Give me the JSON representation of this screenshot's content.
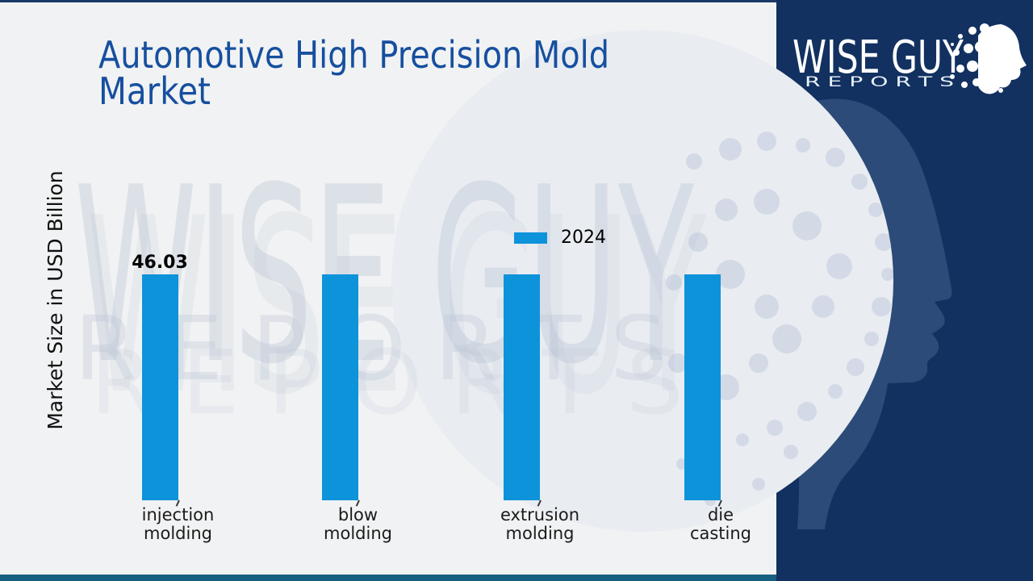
{
  "header": {
    "title_lines": [
      "Automotive High Precision Mold",
      "Market"
    ]
  },
  "logo": {
    "name_text": "WISE GUY",
    "sub_text": "R E P O R T S"
  },
  "watermark": {
    "name_text": "WISE GUY",
    "sub_text": "R E P O R T S"
  },
  "chart_data": {
    "type": "bar",
    "title": "Automotive High Precision Mold Market",
    "xlabel": "",
    "ylabel": "Market Size in USD Billion",
    "categories": [
      "injection molding",
      "blow molding",
      "extrusion molding",
      "die casting"
    ],
    "category_label_lines": [
      [
        "injection",
        "molding"
      ],
      [
        "blow",
        "molding"
      ],
      [
        "extrusion",
        "molding"
      ],
      [
        "die",
        "casting"
      ]
    ],
    "series": [
      {
        "name": "2024",
        "values": [
          46.03,
          46.03,
          46.03,
          46.03
        ]
      }
    ],
    "value_labels": [
      "46.03",
      "",
      "",
      ""
    ],
    "legend": {
      "entries": [
        "2024"
      ],
      "position": "center-top",
      "swatch_color": "#0d93da"
    },
    "grid": false,
    "axes_visible": false
  },
  "colors": {
    "background": "#f1f2f3",
    "bar": "#0d93da",
    "title": "#164f9f",
    "navy_panel": "#123160",
    "panel_face": "#2c4b79",
    "bottom_strip": "#175f80",
    "watermark": "#b9c3d4"
  }
}
